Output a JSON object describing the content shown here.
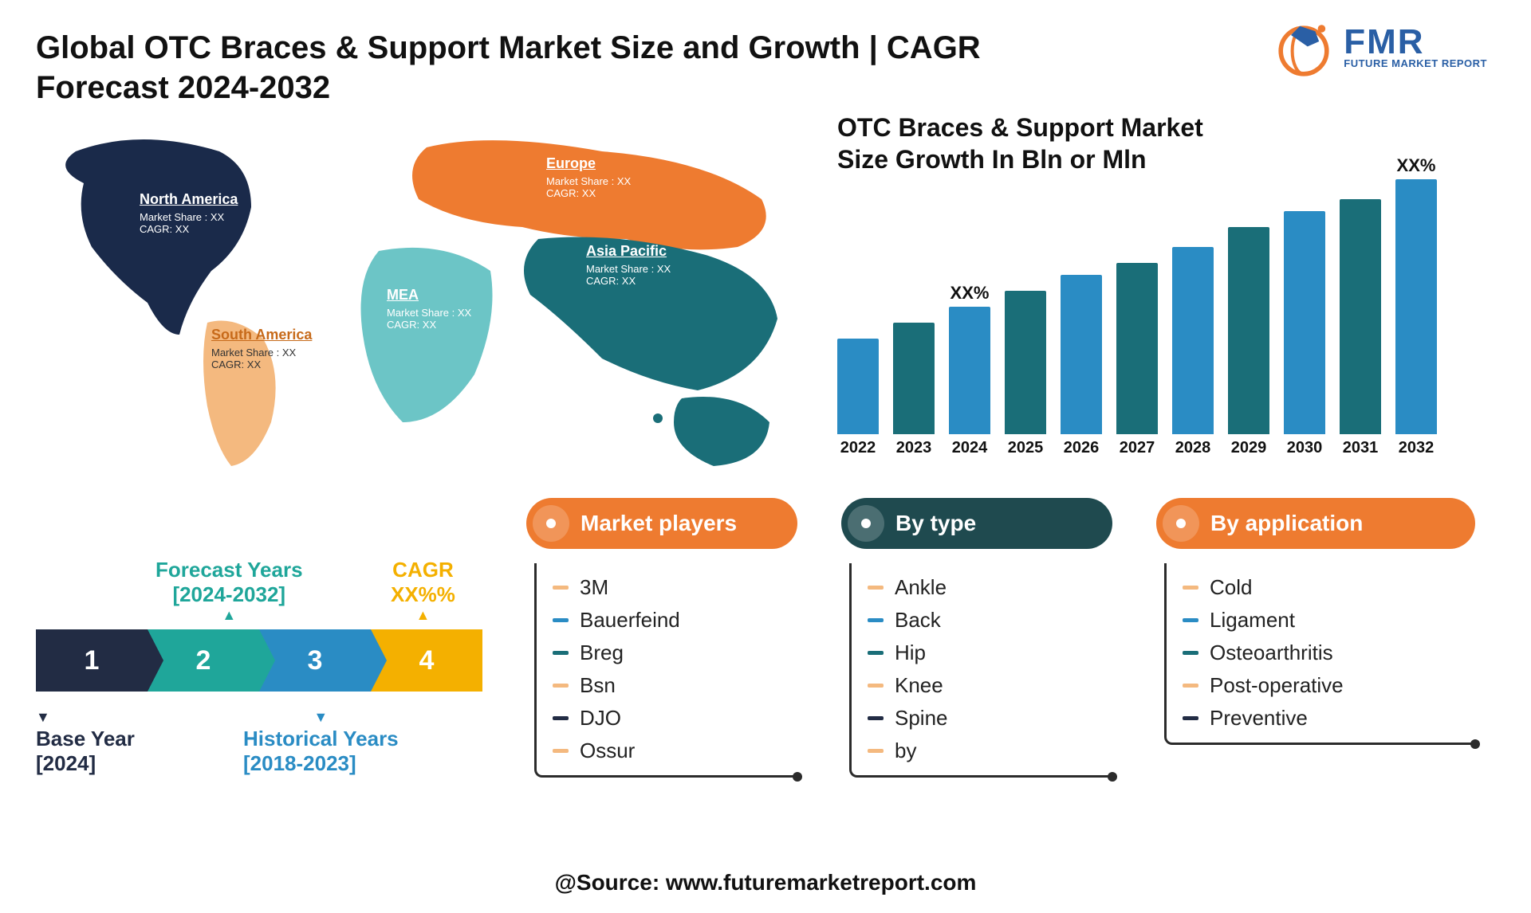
{
  "title": "Global OTC Braces & Support  Market Size and Growth | CAGR Forecast 2024-2032",
  "logo": {
    "fmr": "FMR",
    "sub": "FUTURE MARKET REPORT"
  },
  "map": {
    "regions": [
      {
        "key": "na",
        "name": "North America",
        "share": "Market Share : XX",
        "cagr": "CAGR: XX",
        "color": "#1a2a4a"
      },
      {
        "key": "sa",
        "name": "South America",
        "share": "Market Share : XX",
        "cagr": "CAGR: XX",
        "color": "#f4b97f"
      },
      {
        "key": "eu",
        "name": "Europe",
        "share": "Market Share : XX",
        "cagr": "CAGR: XX",
        "color": "#ee7b30"
      },
      {
        "key": "mea",
        "name": "MEA",
        "share": "Market Share : XX",
        "cagr": "CAGR: XX",
        "color": "#6cc5c6"
      },
      {
        "key": "ap",
        "name": "Asia Pacific",
        "share": "Market Share : XX",
        "cagr": "CAGR: XX",
        "color": "#1a6e78"
      }
    ]
  },
  "chart": {
    "title": "OTC Braces & Support Market Size Growth In Bln or Mln",
    "type": "bar",
    "years": [
      "2022",
      "2023",
      "2024",
      "2025",
      "2026",
      "2027",
      "2028",
      "2029",
      "2030",
      "2031",
      "2032"
    ],
    "values": [
      120,
      140,
      160,
      180,
      200,
      215,
      235,
      260,
      280,
      295,
      320
    ],
    "bar_colors": [
      "#2a8cc4",
      "#1a6e78",
      "#2a8cc4",
      "#1a6e78",
      "#2a8cc4",
      "#1a6e78",
      "#2a8cc4",
      "#1a6e78",
      "#2a8cc4",
      "#1a6e78",
      "#2a8cc4"
    ],
    "top_labels": {
      "2024": "XX%",
      "2032": "XX%"
    },
    "label_fontsize": 20,
    "background_color": "#ffffff"
  },
  "timeline": {
    "forecast_label": "Forecast Years",
    "forecast_range": "[2024-2032]",
    "forecast_color": "#1fa69a",
    "cagr_label": "CAGR",
    "cagr_value": "XX%%",
    "cagr_color": "#f4b000",
    "base_label": "Base Year",
    "base_range": "[2024]",
    "base_color": "#222c44",
    "hist_label": "Historical Years",
    "hist_range": "[2018-2023]",
    "hist_color": "#2a8cc4",
    "steps": [
      {
        "n": "1",
        "color": "#222c44"
      },
      {
        "n": "2",
        "color": "#1fa69a"
      },
      {
        "n": "3",
        "color": "#2a8cc4"
      },
      {
        "n": "4",
        "color": "#f4b000"
      }
    ]
  },
  "pills": {
    "players": {
      "title": "Market players",
      "header_color": "#ee7b30",
      "items": [
        "3M",
        "Bauerfeind",
        "Breg",
        "Bsn",
        "DJO",
        "Ossur"
      ],
      "dash_colors": [
        "#f4b97f",
        "#2a8cc4",
        "#1a6e78",
        "#f4b97f",
        "#222c44",
        "#f4b97f"
      ]
    },
    "type": {
      "title": "By type",
      "header_color": "#1f4a4f",
      "items": [
        "Ankle",
        "Back",
        "Hip",
        "Knee",
        "Spine",
        "by"
      ],
      "dash_colors": [
        "#f4b97f",
        "#2a8cc4",
        "#1a6e78",
        "#f4b97f",
        "#222c44",
        "#f4b97f"
      ]
    },
    "application": {
      "title": "By application",
      "header_color": "#ee7b30",
      "items": [
        "Cold",
        "Ligament",
        "Osteoarthritis",
        "Post-operative",
        "Preventive"
      ],
      "dash_colors": [
        "#f4b97f",
        "#2a8cc4",
        "#1a6e78",
        "#f4b97f",
        "#222c44"
      ]
    }
  },
  "source": "@Source: www.futuremarketreport.com"
}
